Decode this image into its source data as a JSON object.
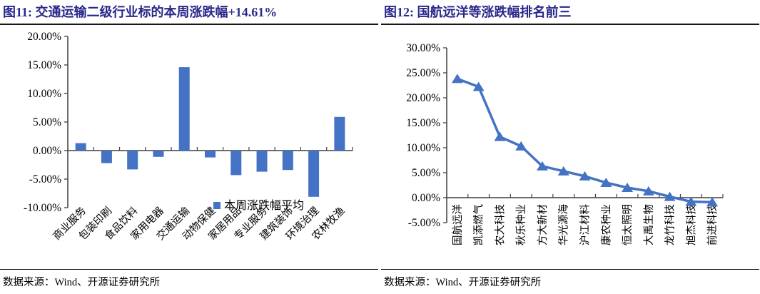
{
  "colors": {
    "accent": "#4472C4",
    "title_navy": "#29288A",
    "axis": "#3f3f3f",
    "text": "#000000"
  },
  "figures": [
    {
      "title": "图11:  交通运输二级行业标的本周涨跌幅+14.61%",
      "source": "数据来源：Wind、开源证券研究所"
    },
    {
      "title": "图12:  国航远洋等涨跌幅排名前三",
      "source": "数据来源：Wind、开源证券研究所"
    }
  ],
  "chart_data": [
    {
      "type": "bar",
      "title": "交通运输二级行业标的本周涨跌幅+14.61%",
      "categories": [
        "商业服务",
        "包装印刷",
        "食品饮料",
        "家用电器",
        "交通运输",
        "动物保健",
        "家居用品",
        "专业服务",
        "建筑装饰",
        "环境治理",
        "农林牧渔"
      ],
      "series": [
        {
          "name": "本周涨跌幅平均",
          "values": [
            1.3,
            -2.2,
            -3.3,
            -1.1,
            14.61,
            -1.2,
            -4.3,
            -3.7,
            -3.4,
            -8.1,
            5.9
          ]
        }
      ],
      "ylim": [
        -10,
        20
      ],
      "ytick_values": [
        20,
        15,
        10,
        5,
        0,
        -5,
        -10
      ],
      "ytick_labels": [
        "20.00%",
        "15.00%",
        "10.00%",
        "5.00%",
        "0.00%",
        "-5.00%",
        "-10.00%"
      ],
      "grid": false,
      "legend": {
        "label": "本周涨跌幅平均",
        "position": "bottom-center",
        "marker": "square"
      }
    },
    {
      "type": "line",
      "title": "国航远洋等涨跌幅排名前三",
      "categories": [
        "国航远洋",
        "凯添燃气",
        "农大科技",
        "秋乐种业",
        "方大新材",
        "华光源海",
        "沪江材料",
        "康农种业",
        "恒太照明",
        "大禹生物",
        "龙竹科技",
        "旭杰科技",
        "前进科技"
      ],
      "series": [
        {
          "name": "涨跌幅",
          "values": [
            23.8,
            22.2,
            12.2,
            10.3,
            6.3,
            5.3,
            4.3,
            3.0,
            2.0,
            1.3,
            0.2,
            -0.8,
            -0.9
          ]
        }
      ],
      "ylim": [
        -5,
        30
      ],
      "ytick_values": [
        30,
        25,
        20,
        15,
        10,
        5,
        0,
        -5
      ],
      "ytick_labels": [
        "30.00%",
        "25.00%",
        "20.00%",
        "15.00%",
        "10.00%",
        "5.00%",
        "0.00%",
        "-5.00%"
      ],
      "grid": false,
      "marker": "triangle",
      "legend": null
    }
  ]
}
